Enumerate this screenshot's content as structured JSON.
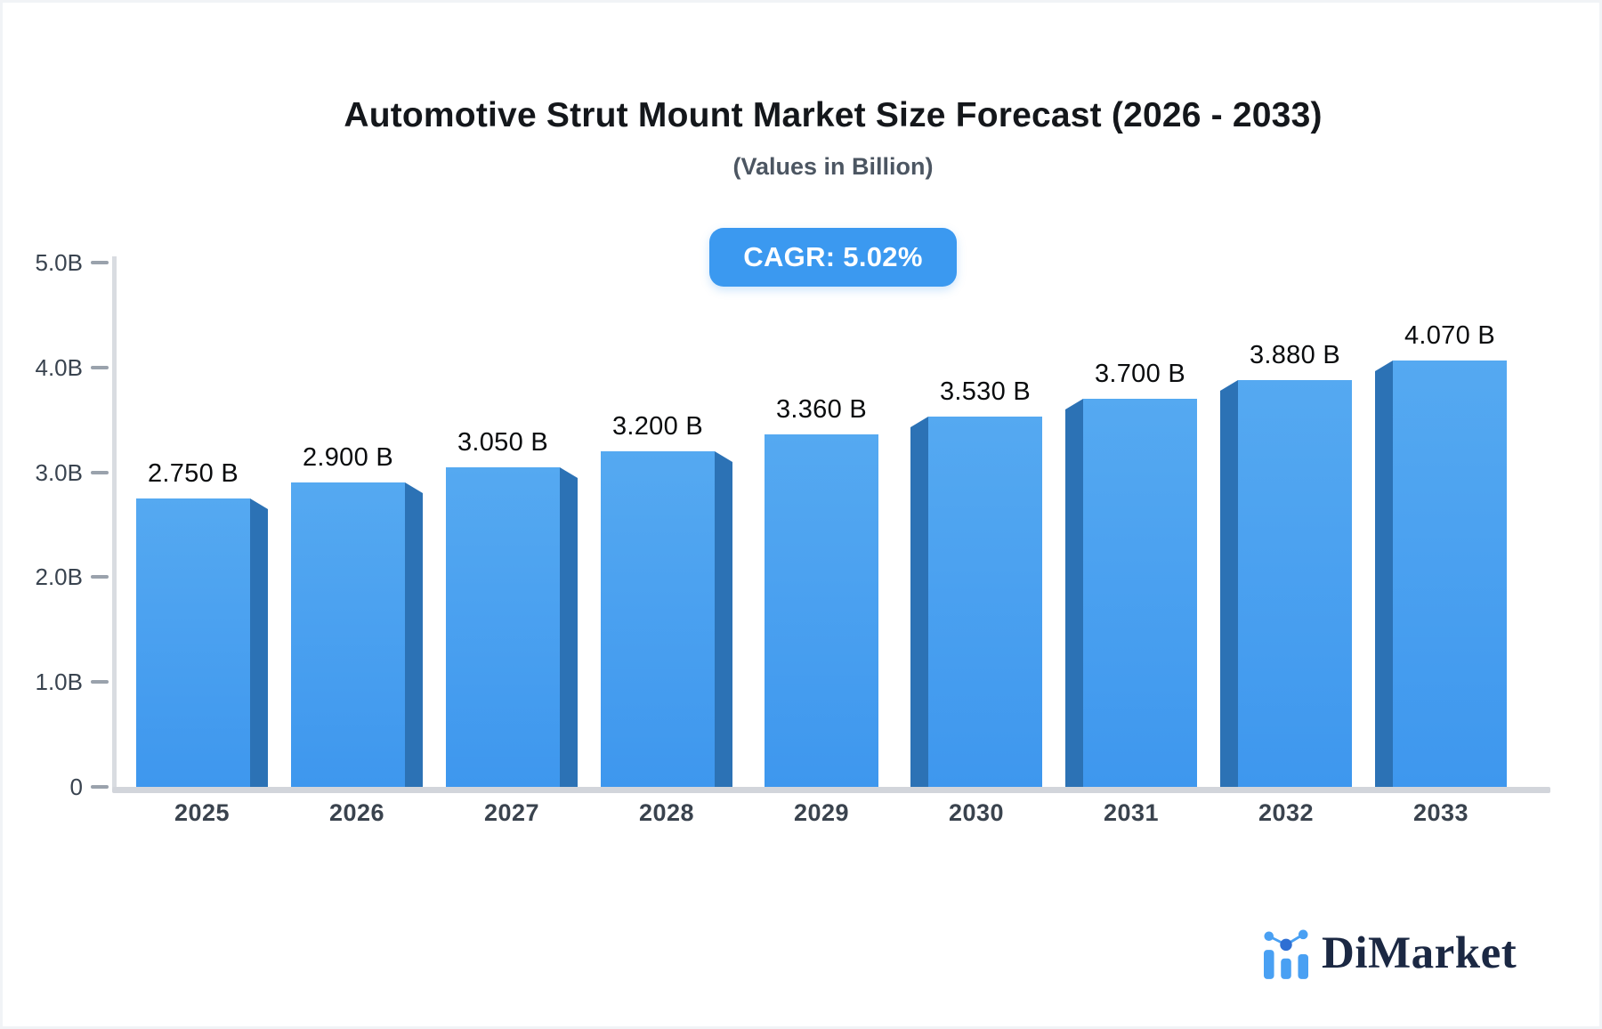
{
  "header": {
    "title": "Automotive Strut Mount Market Size Forecast (2026 - 2033)",
    "subtitle": "(Values in Billion)",
    "cagr_badge": "CAGR: 5.02%"
  },
  "brand": {
    "name": "DiMarket",
    "icon": "bar-chart-with-dots-icon"
  },
  "colors": {
    "bar_face_top": "#55a9f1",
    "bar_face_bottom": "#3e97ee",
    "bar_side": "#2c72b5",
    "badge_bg": "#3b99f0",
    "badge_text": "#ffffff",
    "axis_line": "#d9dce1",
    "baseline": "#d2d5db",
    "title_text": "#14171b",
    "subtitle_text": "#4c5662",
    "value_label_text": "#0a0c0e",
    "x_tick_text": "#3a434e",
    "y_tick_text": "#39434f",
    "tick_dash": "#9aa2ac",
    "brand_navy": "#1b2843",
    "brand_blue": "#49a0f3",
    "brand_dot_dark": "#2f6fd3"
  },
  "chart_data": {
    "type": "bar",
    "title": "Automotive Strut Mount Market Size Forecast (2026 - 2033)",
    "subtitle": "(Values in Billion)",
    "annotation": "CAGR: 5.02%",
    "categories": [
      "2025",
      "2026",
      "2027",
      "2028",
      "2029",
      "2030",
      "2031",
      "2032",
      "2033"
    ],
    "values": [
      2.75,
      2.9,
      3.05,
      3.2,
      3.36,
      3.53,
      3.7,
      3.88,
      4.07
    ],
    "bar_labels": [
      "2.750 B",
      "2.900 B",
      "3.050 B",
      "3.200 B",
      "3.360 B",
      "3.530 B",
      "3.700 B",
      "3.880 B",
      "4.070 B"
    ],
    "unit": "Billion",
    "ylabel": "",
    "xlabel": "",
    "ylim": [
      0,
      5
    ],
    "yticks": [
      {
        "label": "0",
        "value": 0
      },
      {
        "label": "1.0B",
        "value": 1
      },
      {
        "label": "2.0B",
        "value": 2
      },
      {
        "label": "3.0B",
        "value": 3
      },
      {
        "label": "4.0B",
        "value": 4
      },
      {
        "label": "5.0B",
        "value": 5
      }
    ],
    "grid": false,
    "legend": false,
    "bar_style": "3d-perspective-toward-center"
  }
}
